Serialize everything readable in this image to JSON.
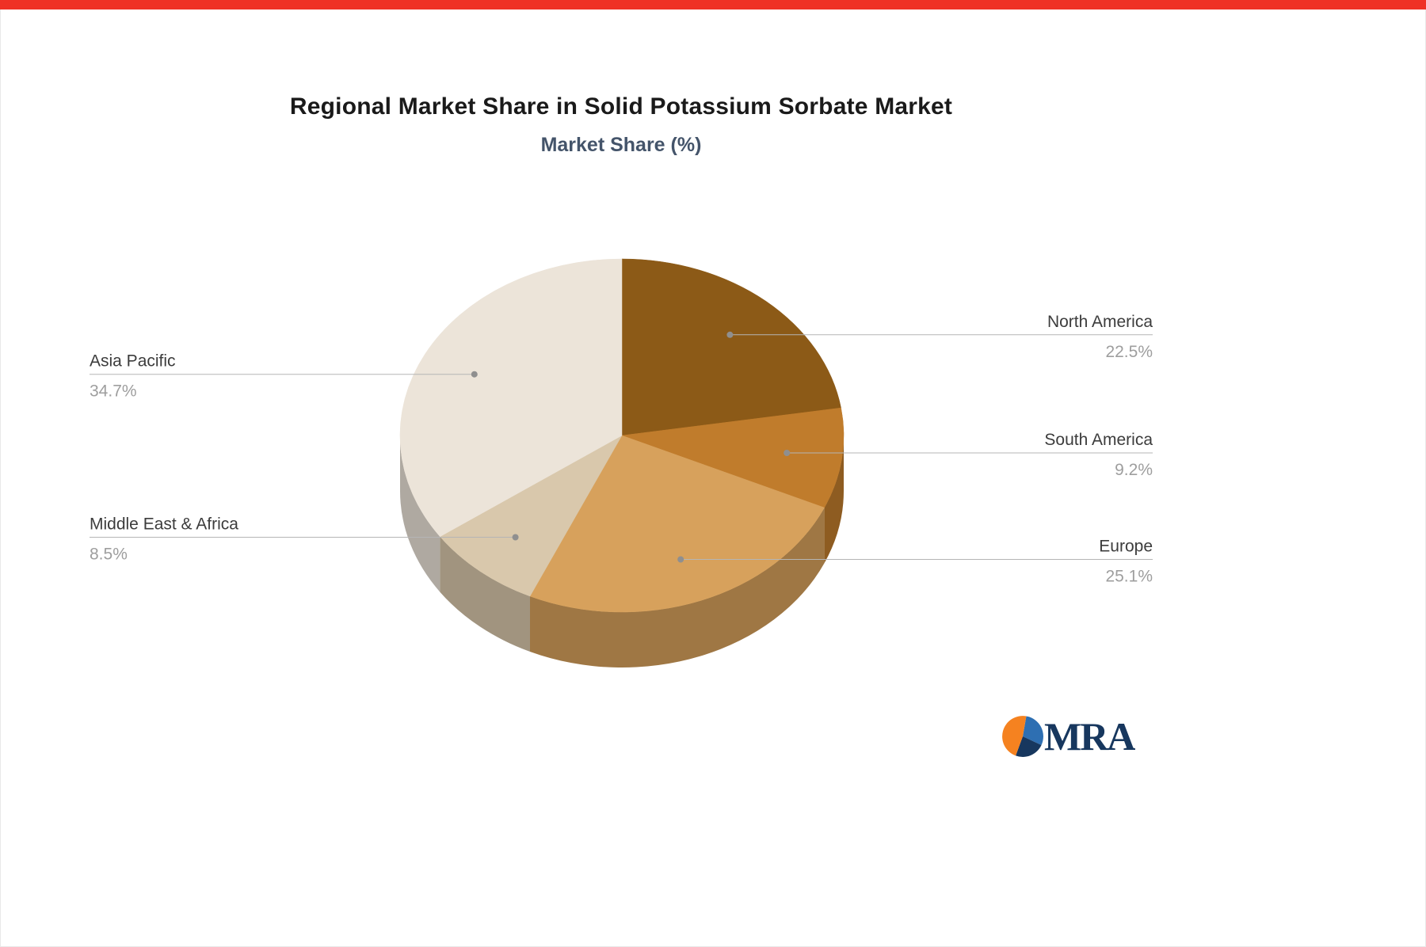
{
  "page": {
    "title": "Regional Market Share in Solid Potassium Sorbate Market",
    "subtitle": "Market Share (%)"
  },
  "chart_data": {
    "type": "pie",
    "title": "Regional Market Share in Solid Potassium Sorbate Market",
    "subtitle": "Market Share (%)",
    "unit": "%",
    "direction": "clockwise",
    "start_angle": "top",
    "effect": "3d-depth",
    "legend_position": "none",
    "slices": [
      {
        "label": "North America",
        "value": 22.5,
        "color": "#8c5a17"
      },
      {
        "label": "South America",
        "value": 9.2,
        "color": "#c07c2c"
      },
      {
        "label": "Europe",
        "value": 25.1,
        "color": "#d7a15c"
      },
      {
        "label": "Middle East & Africa",
        "value": 8.5,
        "color": "#d9c8ac"
      },
      {
        "label": "Asia Pacific",
        "value": 34.7,
        "color": "#ece4d9"
      }
    ],
    "value_labels": [
      "22.5%",
      "9.2%",
      "25.1%",
      "8.5%",
      "34.7%"
    ]
  },
  "branding": {
    "logo_text": "MRA"
  },
  "colors": {
    "top_bar": "#ef3125",
    "title": "#1a1a1a",
    "subtitle": "#44546a",
    "label": "#3c3c3c",
    "value": "#9e9e9e",
    "leader_line": "#b5b5b5",
    "leader_dot": "#8f8f8f",
    "background": "#ffffff",
    "logo_orange": "#f58220",
    "logo_blue": "#2e6fb2",
    "logo_navy": "#17375e",
    "logo_text_color": "#17375e"
  }
}
